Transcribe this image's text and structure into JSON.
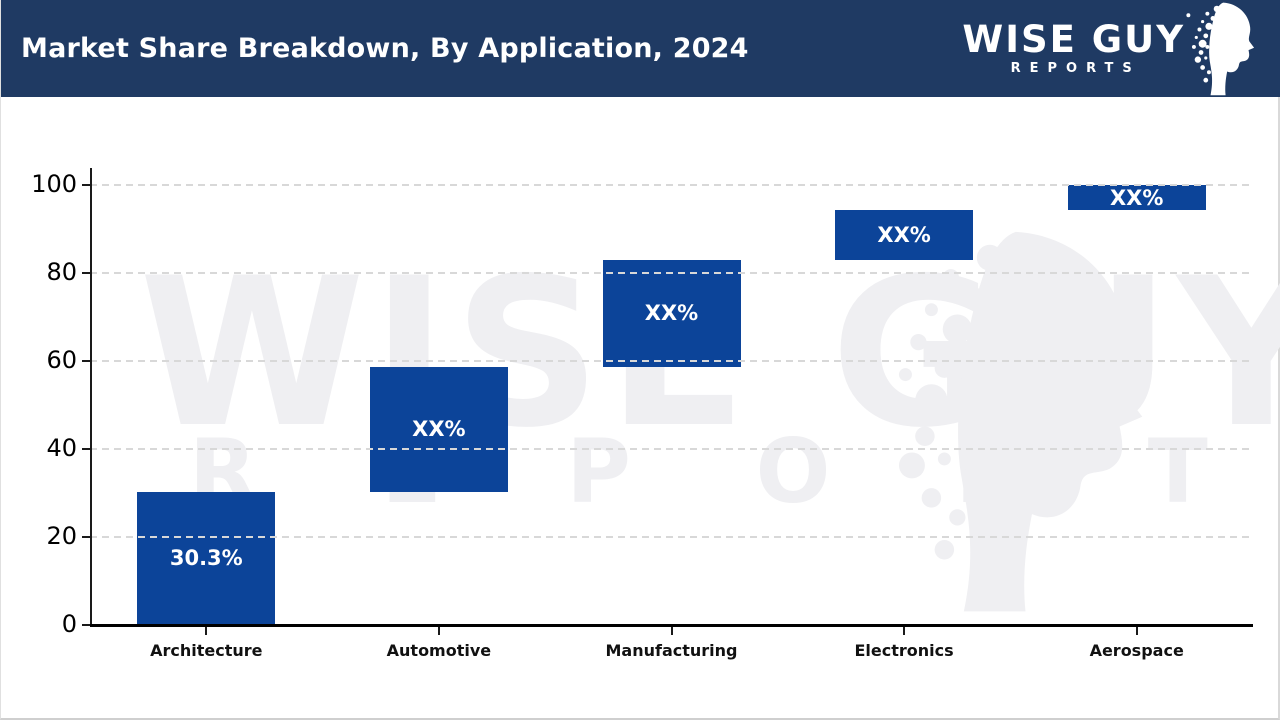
{
  "header": {
    "title": "Market Share Breakdown, By Application, 2024",
    "logo": {
      "line1": "WISE GUY",
      "line2": "REPORTS"
    }
  },
  "watermark": {
    "line1": "WISE GUY",
    "line2": "REPORTS"
  },
  "chart_data": {
    "type": "bar",
    "subtype": "waterfall",
    "title": "Market Share Breakdown, By Application, 2024",
    "xlabel": "",
    "ylabel": "",
    "categories": [
      "Architecture",
      "Automotive",
      "Manufacturing",
      "Electronics",
      "Aerospace"
    ],
    "segments": [
      {
        "category": "Architecture",
        "start": 0,
        "end": 30.3,
        "label": "30.3%"
      },
      {
        "category": "Automotive",
        "start": 30.3,
        "end": 58.6,
        "label": "XX%"
      },
      {
        "category": "Manufacturing",
        "start": 58.6,
        "end": 83.0,
        "label": "XX%"
      },
      {
        "category": "Electronics",
        "start": 83.0,
        "end": 94.3,
        "label": "XX%"
      },
      {
        "category": "Aerospace",
        "start": 94.3,
        "end": 100.0,
        "label": "XX%"
      }
    ],
    "yticks": [
      0,
      20,
      40,
      60,
      80,
      100
    ],
    "ylim": [
      0,
      100
    ],
    "grid": "horizontal-dashed",
    "legend": "none"
  },
  "colors": {
    "header_bg": "#1f3a63",
    "bar": "#0c4499",
    "bar_label": "#ffffff",
    "grid": "#d8d8d8",
    "axis": "#1a1a1a",
    "watermark": "#efeff2"
  }
}
